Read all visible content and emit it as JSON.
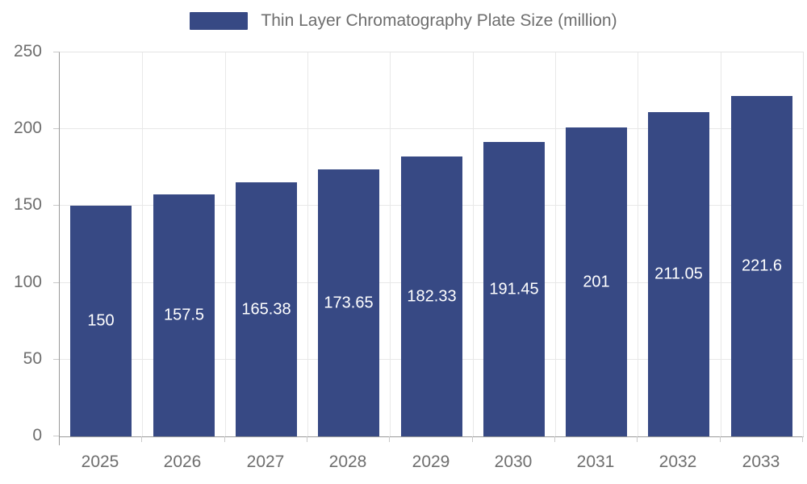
{
  "legend": {
    "label": "Thin Layer Chromatography Plate Size (million)"
  },
  "chart_data": {
    "type": "bar",
    "title": "Thin Layer Chromatography Plate Size (million)",
    "categories": [
      "2025",
      "2026",
      "2027",
      "2028",
      "2029",
      "2030",
      "2031",
      "2032",
      "2033"
    ],
    "values": [
      150,
      157.5,
      165.38,
      173.65,
      182.33,
      191.45,
      201,
      211.05,
      221.6
    ],
    "value_labels": [
      "150",
      "157.5",
      "165.38",
      "173.65",
      "182.33",
      "191.45",
      "201",
      "211.05",
      "221.6"
    ],
    "xlabel": "",
    "ylabel": "",
    "ylim": [
      0,
      250
    ],
    "yticks": [
      0,
      50,
      100,
      150,
      200,
      250
    ],
    "grid": true,
    "legend_position": "top",
    "colors": {
      "bar": "#374984",
      "value_label_text": "#ffffff",
      "axis_line": "#9a9a9a",
      "grid_line": "#e8e8e8",
      "tick_text": "#6e6e6e",
      "legend_text": "#6e6e6e"
    }
  }
}
